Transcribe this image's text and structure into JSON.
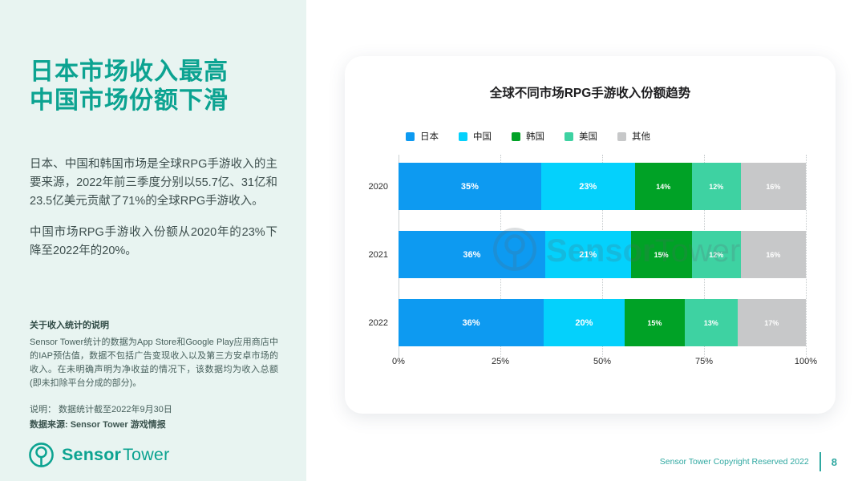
{
  "colors": {
    "accent": "#0CA391",
    "sidebar_bg": "#E8F4F1",
    "footer_teal": "#2FA8A1",
    "japan_blue": "#0D9AF1",
    "china_cyan": "#04D1FC",
    "korea_green": "#00A226",
    "us_teal": "#3ED2A2",
    "other_gray": "#C7C8C9"
  },
  "sidebar": {
    "title": [
      "日本市场收入最高",
      "中国市场份额下滑"
    ],
    "paragraphs": [
      "日本、中国和韩国市场是全球RPG手游收入的主要来源，2022年前三季度分别以55.7亿、31亿和23.5亿美元贡献了71%的全球RPG手游收入。",
      "中国市场RPG手游收入份额从2020年的23%下降至2022年的20%。"
    ],
    "note_title": "关于收入统计的说明",
    "note_body": "Sensor Tower统计的数据为App Store和Google Play应用商店中的IAP预估值，数据不包括广告变现收入以及第三方安卓市场的收入。在未明确声明为净收益的情况下，该数据均为收入总额(即未扣除平台分成的部分)。",
    "note_meta1": "说明： 数据统计截至2022年9月30日",
    "note_meta2": "数据来源: Sensor Tower 游戏情报",
    "logo": {
      "bold": "Sensor",
      "regular": "Tower"
    }
  },
  "chart": {
    "title": "全球不同市场RPG手游收入份额趋势",
    "watermark": {
      "bold": "Sensor",
      "regular": "Tower"
    },
    "x_tick_positions": [
      0,
      25,
      50,
      75,
      100
    ]
  },
  "chart_data": {
    "type": "bar",
    "stacked": true,
    "orientation": "horizontal",
    "title": "全球不同市场RPG手游收入份额趋势",
    "categories": [
      "2020",
      "2021",
      "2022"
    ],
    "series": [
      {
        "name": "日本",
        "color": "#0D9AF1",
        "values": [
          35,
          36,
          36
        ]
      },
      {
        "name": "中国",
        "color": "#04D1FC",
        "values": [
          23,
          21,
          20
        ]
      },
      {
        "name": "韩国",
        "color": "#00A226",
        "values": [
          14,
          15,
          15
        ]
      },
      {
        "name": "美国",
        "color": "#3ED2A2",
        "values": [
          12,
          12,
          13
        ]
      },
      {
        "name": "其他",
        "color": "#C7C8C9",
        "values": [
          16,
          16,
          17
        ]
      }
    ],
    "unit": "%",
    "xlim": [
      0,
      100
    ],
    "x_ticks": [
      "0%",
      "25%",
      "50%",
      "75%",
      "100%"
    ],
    "legend_position": "top",
    "grid": "vertical-dotted"
  },
  "footer": {
    "copyright": "Sensor Tower Copyright Reserved 2022",
    "page": "8"
  }
}
